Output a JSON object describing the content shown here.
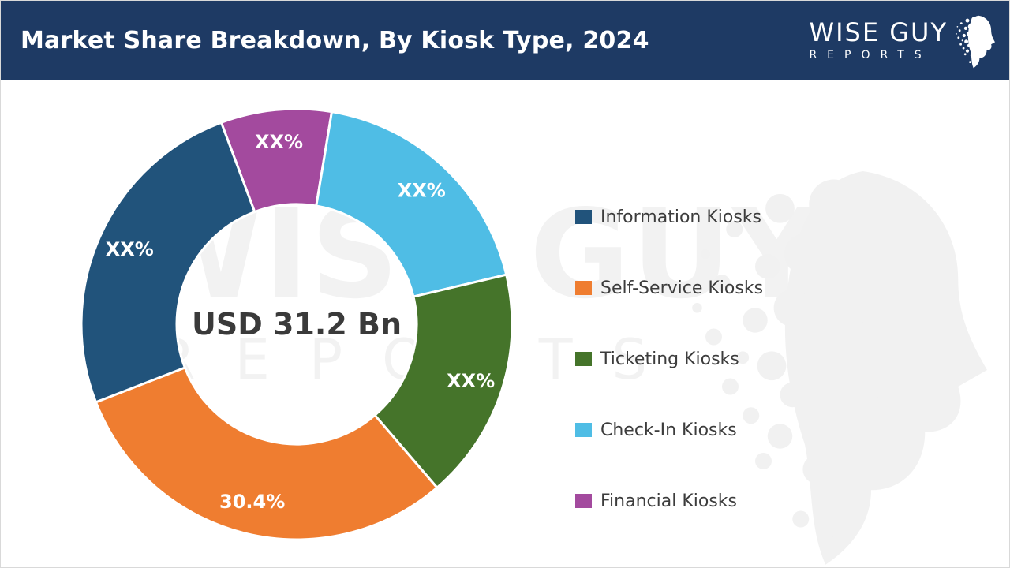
{
  "header": {
    "title": "Market Share Breakdown, By Kiosk Type, 2024",
    "logo": {
      "name": "WISE GUY",
      "tagline": "REPORTS"
    }
  },
  "watermark": {
    "line1": "WISE GUY",
    "line2": "REPORTS"
  },
  "colors": {
    "header_bg": "#1E3A64",
    "page_bg": "#FFFFFF",
    "page_border": "#D9D9D9",
    "title_text": "#FFFFFF",
    "center_text": "#3A3A3A",
    "legend_text": "#3C3C3C",
    "slice_label_text": "#FFFFFF",
    "watermark_text": "#F2F2F2",
    "watermark_face": "#F1F1F1",
    "information_kiosks": "#21537B",
    "self_service_kiosks": "#EF7D30",
    "ticketing_kiosks": "#45742A",
    "check_in_kiosks": "#4FBDE5",
    "financial_kiosks": "#A34A9E"
  },
  "chart_data": {
    "type": "pie",
    "subtype": "donut",
    "title": "Market Share Breakdown, By Kiosk Type, 2024",
    "center_label": "USD 31.2 Bn",
    "units": "percent of market share",
    "start_angle_deg": -20.5,
    "clockwise": true,
    "legend_position": "right",
    "slices": [
      {
        "label": "Financial Kiosks",
        "display_value": "XX%",
        "percent_est": 8.3,
        "color": "#A34A9E"
      },
      {
        "label": "Check-In Kiosks",
        "display_value": "XX%",
        "percent_est": 18.7,
        "color": "#4FBDE5"
      },
      {
        "label": "Ticketing Kiosks",
        "display_value": "XX%",
        "percent_est": 17.4,
        "color": "#45742A"
      },
      {
        "label": "Self-Service Kiosks",
        "display_value": "30.4%",
        "percent_est": 30.4,
        "color": "#EF7D30"
      },
      {
        "label": "Information Kiosks",
        "display_value": "XX%",
        "percent_est": 25.2,
        "color": "#21537B"
      }
    ]
  },
  "legend": {
    "items": [
      {
        "label": "Information Kiosks",
        "color": "#21537B"
      },
      {
        "label": "Self-Service Kiosks",
        "color": "#EF7D30"
      },
      {
        "label": "Ticketing Kiosks",
        "color": "#45742A"
      },
      {
        "label": "Check-In Kiosks",
        "color": "#4FBDE5"
      },
      {
        "label": "Financial Kiosks",
        "color": "#A34A9E"
      }
    ]
  }
}
